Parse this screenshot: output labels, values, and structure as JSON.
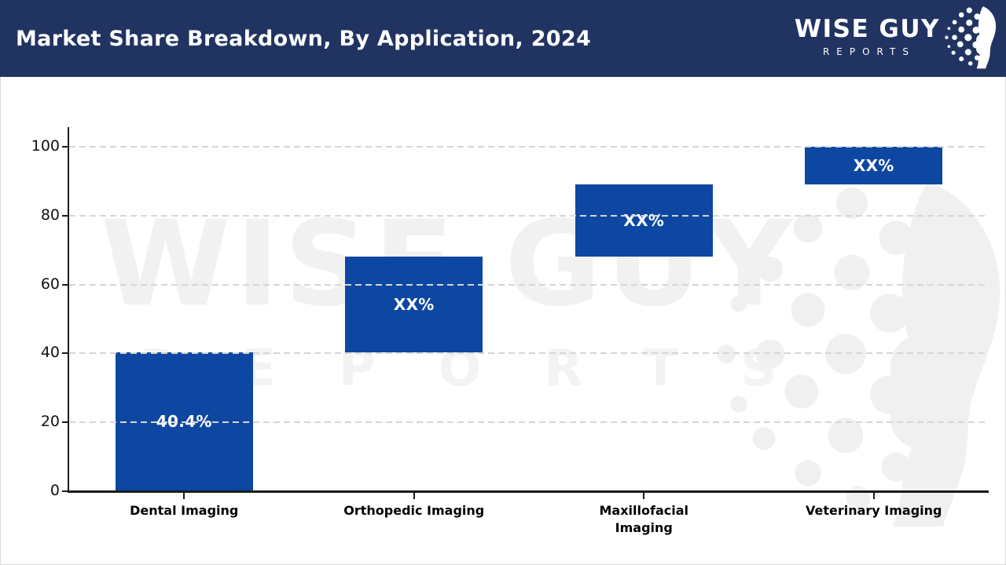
{
  "header": {
    "title": "Market Share Breakdown, By Application, 2024",
    "logo": {
      "line1": "WISE GUY",
      "line2": "REPORTS"
    }
  },
  "watermark": {
    "line1": "WISE GUY",
    "line2": "REPORTS"
  },
  "colors": {
    "header_bg": "#213361",
    "bar": "#0d47a1",
    "bar_label": "#ffffff",
    "gridline": "#d6d6d6",
    "axis": "#1a1a1a",
    "watermark": "#f1f1f1"
  },
  "chart_data": {
    "type": "bar",
    "subtype": "waterfall-floating-bars",
    "title": "Market Share Breakdown, By Application, 2024",
    "categories": [
      "Dental Imaging",
      "Orthopedic Imaging",
      "Maxillofacial\nImaging",
      "Veterinary Imaging"
    ],
    "segments": [
      {
        "category": "Dental Imaging",
        "start": 0,
        "end": 40.4,
        "size": 40.4,
        "label": "40.4%"
      },
      {
        "category": "Orthopedic Imaging",
        "start": 40.4,
        "end": 68,
        "size": 27.6,
        "label": "XX%"
      },
      {
        "category": "Maxillofacial Imaging",
        "start": 68,
        "end": 89,
        "size": 21,
        "label": "XX%"
      },
      {
        "category": "Veterinary Imaging",
        "start": 89,
        "end": 100,
        "size": 11,
        "label": "XX%"
      }
    ],
    "yticks": [
      0,
      20,
      40,
      60,
      80,
      100
    ],
    "ytick_labels": [
      "0",
      "20",
      "40",
      "60",
      "80",
      "100"
    ],
    "ylim": [
      0,
      105.7
    ],
    "xlabel": "",
    "ylabel": "",
    "grid": "dashed horizontal, drawn over bars",
    "legend": "none",
    "bar_color": "#0d47a1",
    "label_color": "#ffffff"
  }
}
